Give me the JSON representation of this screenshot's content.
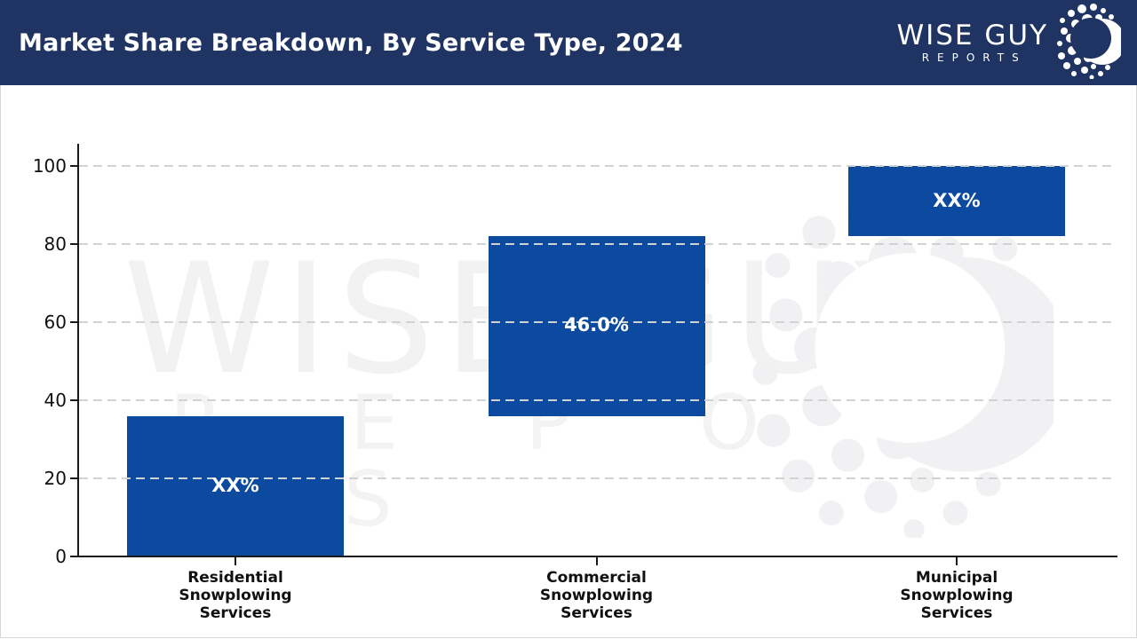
{
  "header": {
    "title": "Market Share Breakdown, By Service Type, 2024",
    "logo": {
      "line1": "WISE GUY",
      "line2": "REPORTS"
    }
  },
  "watermark": {
    "line1": "WISE GUY",
    "line2": "R E P O R T S"
  },
  "chart_data": {
    "type": "bar",
    "subtype": "waterfall",
    "title": "Market Share Breakdown, By Service Type, 2024",
    "categories": [
      "Residential Snowplowing Services",
      "Commercial Snowplowing Services",
      "Municipal Snowplowing Services"
    ],
    "category_tick_lines": [
      [
        "Residential",
        "Snowplowing",
        "Services"
      ],
      [
        "Commercial",
        "Snowplowing",
        "Services"
      ],
      [
        "Municipal",
        "Snowplowing",
        "Services"
      ]
    ],
    "segments": [
      {
        "category": "Residential Snowplowing Services",
        "start": 0,
        "end": 36,
        "value": 36,
        "label": "XX%"
      },
      {
        "category": "Commercial Snowplowing Services",
        "start": 36,
        "end": 82,
        "value": 46,
        "label": "46.0%"
      },
      {
        "category": "Municipal Snowplowing Services",
        "start": 82,
        "end": 100,
        "value": 18,
        "label": "XX%"
      }
    ],
    "xlabel": "",
    "ylabel": "",
    "ylim": [
      0,
      100
    ],
    "yticks": [
      0,
      20,
      40,
      60,
      80,
      100
    ],
    "grid": "horizontal-dashed, drawn over bars",
    "legend_position": "none",
    "bar_color": "#0b4a9e",
    "value_label_color": "#ffffff"
  },
  "colors": {
    "header_bg": "#1f3462",
    "bar": "#0b4a9e",
    "grid": "#d2d2d2",
    "axis": "#1a1a1a",
    "watermark": "#f2f2f3",
    "frame_border": "#d6d6d6"
  }
}
